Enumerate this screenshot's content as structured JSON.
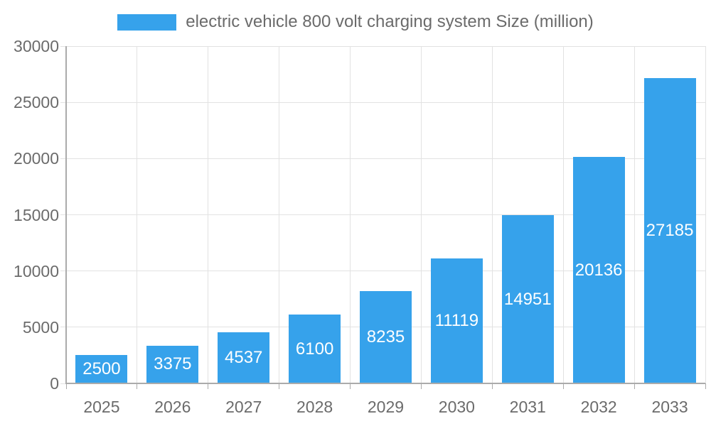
{
  "legend": {
    "label": "electric vehicle 800 volt charging system Size (million)"
  },
  "chart_data": {
    "type": "bar",
    "title": "electric vehicle 800 volt charging system Size (million)",
    "categories": [
      "2025",
      "2026",
      "2027",
      "2028",
      "2029",
      "2030",
      "2031",
      "2032",
      "2033"
    ],
    "values": [
      2500,
      3375,
      4537,
      6100,
      8235,
      11119,
      14951,
      20136,
      27185
    ],
    "xlabel": "",
    "ylabel": "",
    "ylim": [
      0,
      30000
    ],
    "yticks": [
      0,
      5000,
      10000,
      15000,
      20000,
      25000,
      30000
    ],
    "grid": true,
    "legend_position": "top",
    "data_labels": "inside-center-white",
    "colors": {
      "bar": "#36A2EB",
      "axis_text": "#6b6b6b",
      "grid_line": "#e2e2e2",
      "axis_line": "#ababab",
      "bar_label_text": "#ffffff",
      "legend_text": "#6b6b6b",
      "background": "#ffffff"
    }
  }
}
